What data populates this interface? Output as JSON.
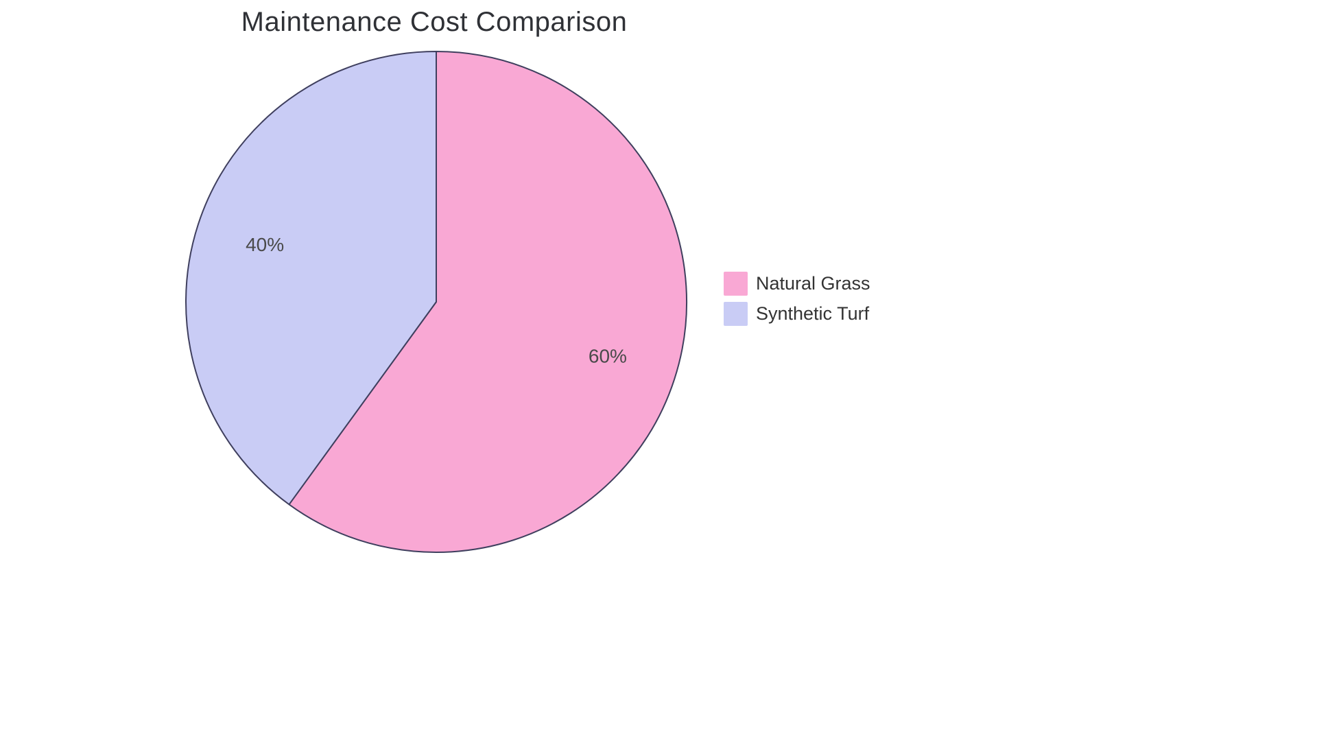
{
  "chart_data": {
    "type": "pie",
    "title": "Maintenance Cost Comparison",
    "labels": [
      "Natural Grass",
      "Synthetic Turf"
    ],
    "values": [
      60,
      40
    ],
    "value_labels": [
      "60%",
      "40%"
    ],
    "colors": [
      "#F9A8D4",
      "#C9CCF5"
    ],
    "stroke_color": "#3F3F5E",
    "label_color": "#4A4A4A",
    "legend_position": "right",
    "start_angle_deg": 0,
    "direction": "clockwise",
    "legend": [
      {
        "label": "Natural Grass",
        "color": "#F9A8D4"
      },
      {
        "label": "Synthetic Turf",
        "color": "#C9CCF5"
      }
    ]
  }
}
